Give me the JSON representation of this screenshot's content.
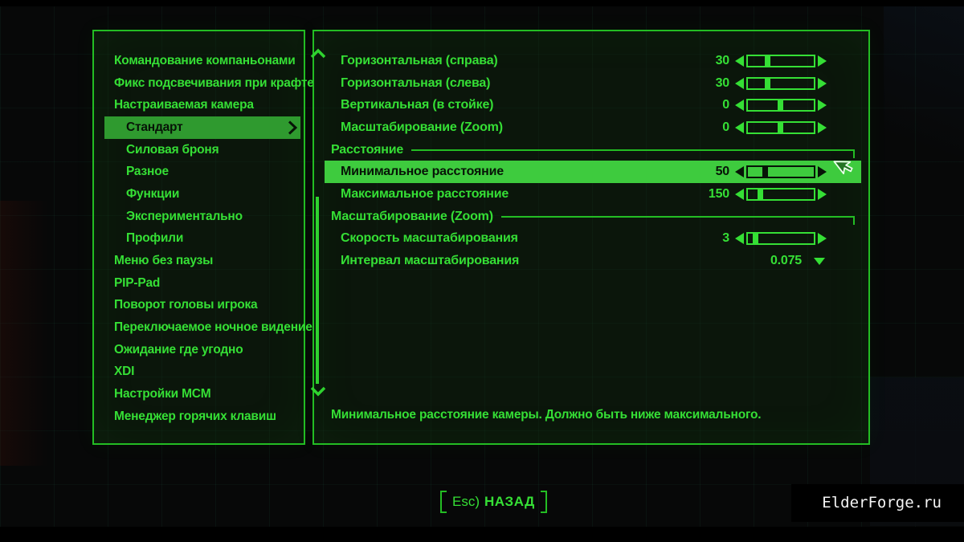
{
  "sidebar": {
    "items": [
      {
        "label": "Командование компаньонами",
        "indent": 0,
        "selected": false
      },
      {
        "label": "Фикс подсвечивания при крафте",
        "indent": 0,
        "selected": false
      },
      {
        "label": "Настраиваемая камера",
        "indent": 0,
        "selected": false
      },
      {
        "label": "Стандарт",
        "indent": 1,
        "selected": true
      },
      {
        "label": "Силовая броня",
        "indent": 1,
        "selected": false
      },
      {
        "label": "Разное",
        "indent": 1,
        "selected": false
      },
      {
        "label": "Функции",
        "indent": 1,
        "selected": false
      },
      {
        "label": "Экспериментально",
        "indent": 1,
        "selected": false
      },
      {
        "label": "Профили",
        "indent": 1,
        "selected": false
      },
      {
        "label": "Меню без паузы",
        "indent": 0,
        "selected": false
      },
      {
        "label": "PIP-Pad",
        "indent": 0,
        "selected": false
      },
      {
        "label": "Поворот головы игрока",
        "indent": 0,
        "selected": false
      },
      {
        "label": "Переключаемое ночное видение",
        "indent": 0,
        "selected": false
      },
      {
        "label": "Ожидание где угодно",
        "indent": 0,
        "selected": false
      },
      {
        "label": "XDI",
        "indent": 0,
        "selected": false
      },
      {
        "label": "Настройки MCM",
        "indent": 0,
        "selected": false
      },
      {
        "label": "Менеджер горячих клавиш",
        "indent": 0,
        "selected": false
      }
    ]
  },
  "settings": {
    "rows": [
      {
        "type": "slider",
        "label": "Горизонтальная (справа)",
        "value": "30",
        "pos": 30,
        "highlighted": false
      },
      {
        "type": "slider",
        "label": "Горизонтальная (слева)",
        "value": "30",
        "pos": 30,
        "highlighted": false
      },
      {
        "type": "slider",
        "label": "Вертикальная (в стойке)",
        "value": "0",
        "pos": 50,
        "highlighted": false
      },
      {
        "type": "slider",
        "label": "Масштабирование (Zoom)",
        "value": "0",
        "pos": 50,
        "highlighted": false
      },
      {
        "type": "section",
        "label": "Расстояние"
      },
      {
        "type": "slider",
        "label": "Минимальное расстояние",
        "value": "50",
        "pos": 27,
        "highlighted": true
      },
      {
        "type": "slider",
        "label": "Максимальное расстояние",
        "value": "150",
        "pos": 20,
        "highlighted": false
      },
      {
        "type": "section",
        "label": "Масштабирование (Zoom)"
      },
      {
        "type": "slider",
        "label": "Скорость масштабирования",
        "value": "3",
        "pos": 12,
        "highlighted": false
      },
      {
        "type": "dropdown",
        "label": "Интервал масштабирования",
        "value": "0.075"
      }
    ],
    "description": "Минимальное расстояние камеры. Должно быть ниже максимального."
  },
  "footer": {
    "back_key": "Esc)",
    "back_label": "НАЗАД"
  },
  "watermark": "ElderForge.ru",
  "colors": {
    "text_green": "#35df35",
    "border_green": "#23bd23",
    "highlight_green": "#3ecb3e",
    "selected_green": "#2f9a2f",
    "background": "#070808"
  }
}
